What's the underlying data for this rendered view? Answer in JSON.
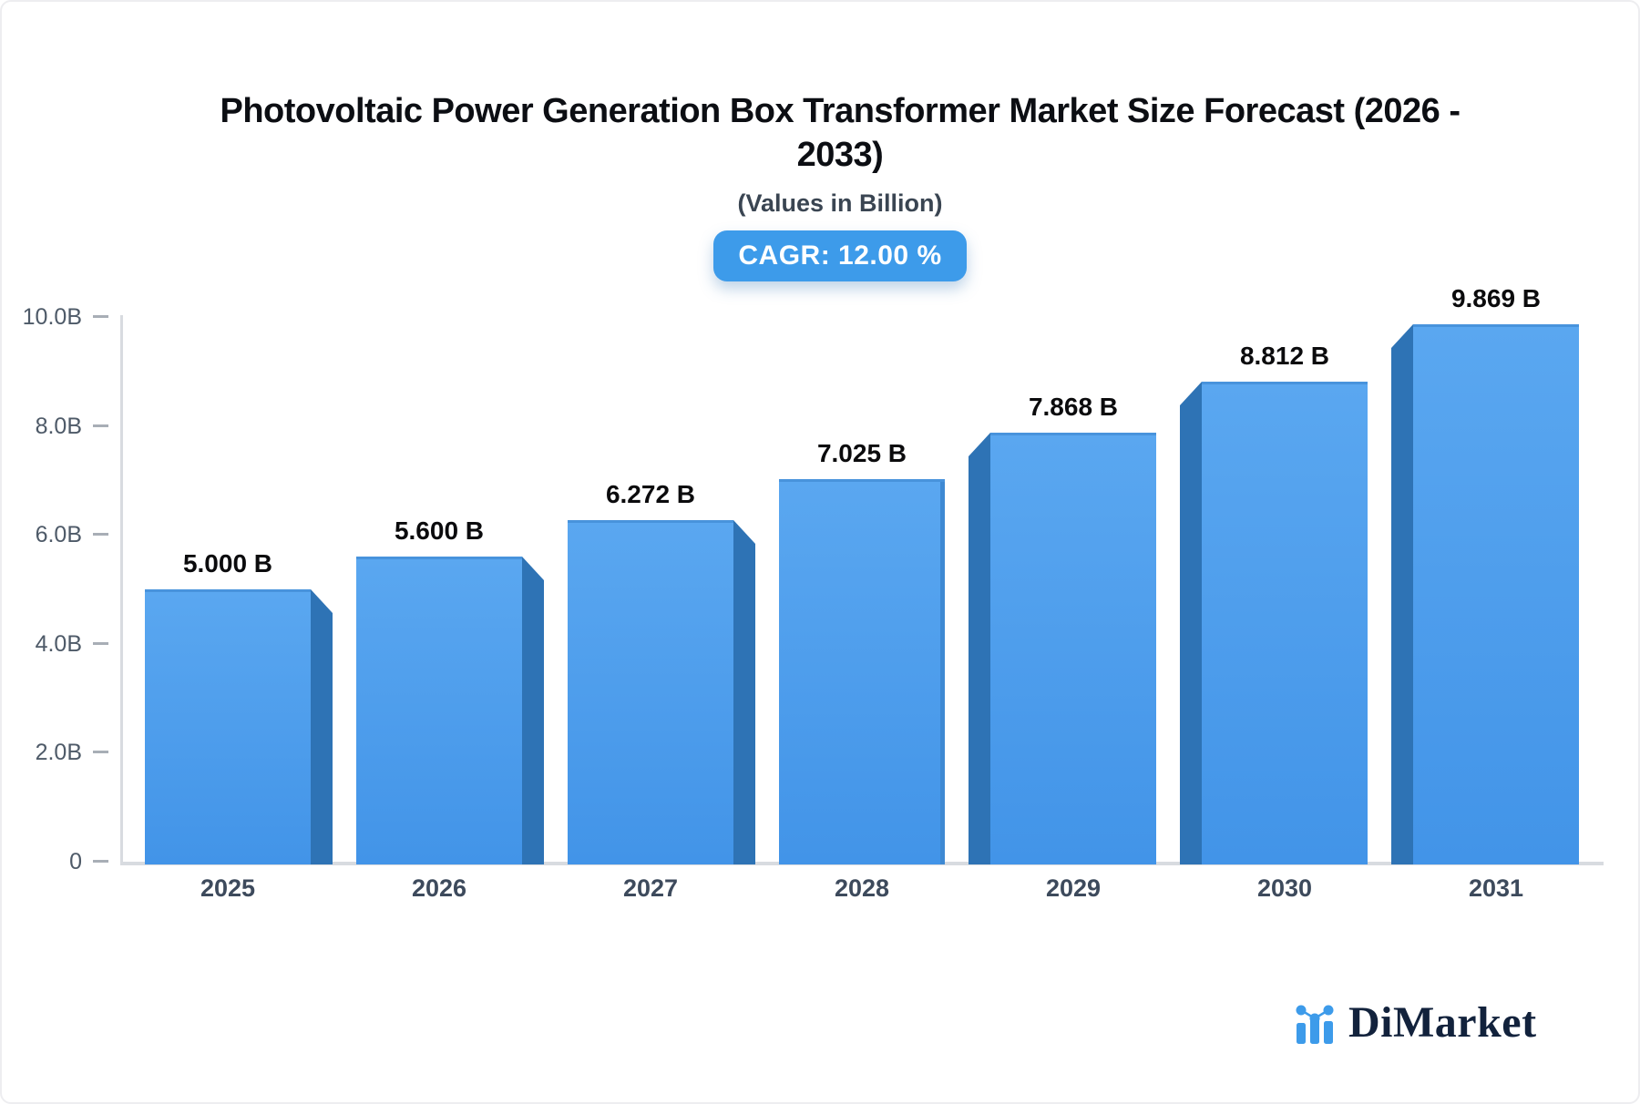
{
  "header": {
    "title_line1": "Photovoltaic Power Generation Box Transformer Market Size Forecast (2026 -",
    "title_line2": "2033)",
    "subtitle": "(Values in Billion)",
    "cagr_label": "CAGR: 12.00 %"
  },
  "chart_data": {
    "type": "bar",
    "title": "Photovoltaic Power Generation Box Transformer Market Size Forecast (2026 - 2033)",
    "subtitle": "(Values in Billion)",
    "cagr": "12.00 %",
    "categories": [
      "2025",
      "2026",
      "2027",
      "2028",
      "2029",
      "2030",
      "2031"
    ],
    "values": [
      5.0,
      5.6,
      6.272,
      7.025,
      7.868,
      8.812,
      9.869
    ],
    "value_labels": [
      "5.000 B",
      "5.600 B",
      "6.272 B",
      "7.025 B",
      "7.868 B",
      "8.812 B",
      "9.869 B"
    ],
    "xlabel": "",
    "ylabel": "",
    "ylim": [
      0,
      10
    ],
    "y_ticks": [
      {
        "label": "10.0B",
        "value": 10
      },
      {
        "label": "8.0B",
        "value": 8
      },
      {
        "label": "6.0B",
        "value": 6
      },
      {
        "label": "4.0B",
        "value": 4
      },
      {
        "label": "2.0B",
        "value": 2
      },
      {
        "label": "0",
        "value": 0
      }
    ],
    "grid": false,
    "legend": "none",
    "bar_style": "3d"
  },
  "footer": {
    "brand": "DiMarket"
  },
  "colors": {
    "accent": "#3d9bea",
    "bar_face_top": "#5aa7f0",
    "bar_face_bottom": "#4294e8",
    "bar_top_edge": "#4893dc",
    "bar_side": "#2e73b5",
    "axis_line": "#d8dbe0",
    "tick_dash": "#a8aeb6",
    "tick_label_text": "#4e5a68",
    "year_label_text": "#3d4a5c",
    "title_text": "#0c0e13",
    "subtitle_text": "#3a4552",
    "badge_text": "#ffffff",
    "brand_text": "#12223c"
  }
}
